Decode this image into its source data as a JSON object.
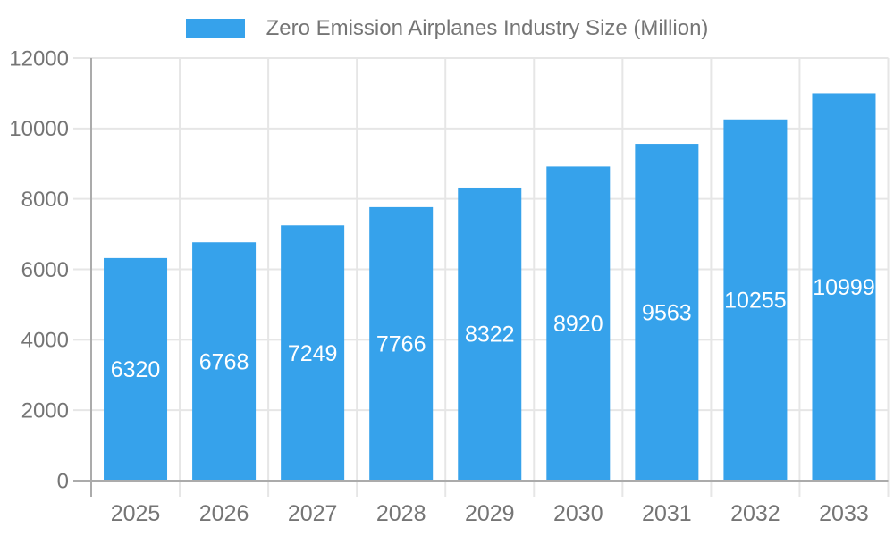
{
  "legend": {
    "label": "Zero Emission Airplanes Industry Size (Million)"
  },
  "chart_data": {
    "type": "bar",
    "title": "",
    "categories": [
      "2025",
      "2026",
      "2027",
      "2028",
      "2029",
      "2030",
      "2031",
      "2032",
      "2033"
    ],
    "series": [
      {
        "name": "Zero Emission Airplanes Industry Size (Million)",
        "values": [
          6320,
          6768,
          7249,
          7766,
          8322,
          8920,
          9563,
          10255,
          10999
        ]
      }
    ],
    "bar_value_labels": [
      "6320",
      "6768",
      "7249",
      "7766",
      "8322",
      "8920",
      "9563",
      "10255",
      "10999"
    ],
    "xlabel": "",
    "ylabel": "",
    "ylim": [
      0,
      12000
    ],
    "ytick_interval": 2000,
    "ytick_labels": [
      "0",
      "2000",
      "4000",
      "6000",
      "8000",
      "10000",
      "12000"
    ],
    "grid": true,
    "legend_position": "top",
    "colors": {
      "bar": "#36A2EB",
      "bar_label": "#ffffff",
      "axis_text": "#757575",
      "grid_line": "#E6E6E6",
      "axis_line": "#ABABAB"
    }
  }
}
